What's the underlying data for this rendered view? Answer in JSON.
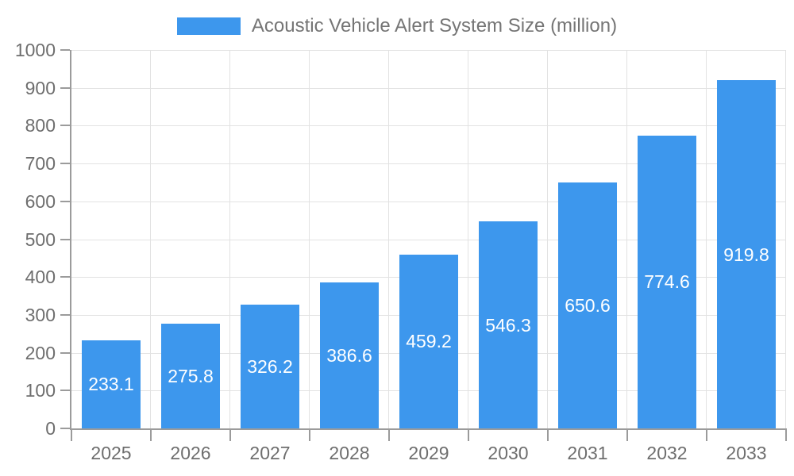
{
  "chart_data": {
    "type": "bar",
    "title": "Acoustic Vehicle Alert System Size (million)",
    "legend": [
      "Acoustic Vehicle Alert System Size (million)"
    ],
    "legend_position": "top",
    "categories": [
      "2025",
      "2026",
      "2027",
      "2028",
      "2029",
      "2030",
      "2031",
      "2032",
      "2033"
    ],
    "values": [
      233.1,
      275.8,
      326.2,
      386.6,
      459.2,
      546.3,
      650.6,
      774.6,
      919.8
    ],
    "value_labels": [
      "233.1",
      "275.8",
      "326.2",
      "386.6",
      "459.2",
      "546.3",
      "650.6",
      "774.6",
      "919.8"
    ],
    "xlabel": "",
    "ylabel": "",
    "ylim": [
      0,
      1000
    ],
    "y_ticks": [
      0,
      100,
      200,
      300,
      400,
      500,
      600,
      700,
      800,
      900,
      1000
    ],
    "grid": true
  },
  "colors": {
    "background": "#ffffff",
    "bar": "#3d97ed",
    "bar_label": "#ffffff",
    "grid": "#e2e2e2",
    "axis": "#9b9b9b",
    "axis_text": "#6e6e6e",
    "legend_text": "#757575"
  }
}
